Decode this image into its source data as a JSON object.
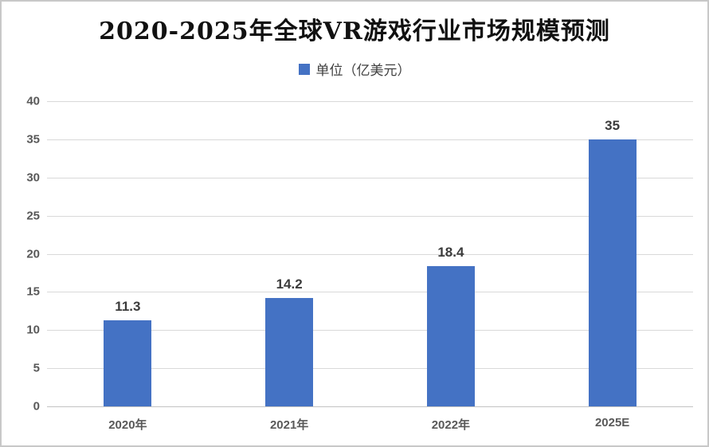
{
  "chart_data": {
    "type": "bar",
    "title": "2020-2025年全球VR游戏行业市场规模预测",
    "legend": {
      "label": "单位（亿美元）",
      "position": "top"
    },
    "categories": [
      "2020年",
      "2021年",
      "2022年",
      "2025E"
    ],
    "values": [
      11.3,
      14.2,
      18.4,
      35
    ],
    "value_labels": [
      "11.3",
      "14.2",
      "18.4",
      "35"
    ],
    "xlabel": "",
    "ylabel": "",
    "ylim": [
      0,
      40
    ],
    "yticks": [
      0,
      5,
      10,
      15,
      20,
      25,
      30,
      35,
      40
    ],
    "grid": true,
    "colors": {
      "bar": "#4472C4",
      "gridline": "#d9d9d9",
      "axis_line": "#c3c3c3",
      "tick_text": "#595959",
      "value_text": "#3b3b3b",
      "title_text": "#111111",
      "frame_border": "#c8c8c8"
    }
  }
}
